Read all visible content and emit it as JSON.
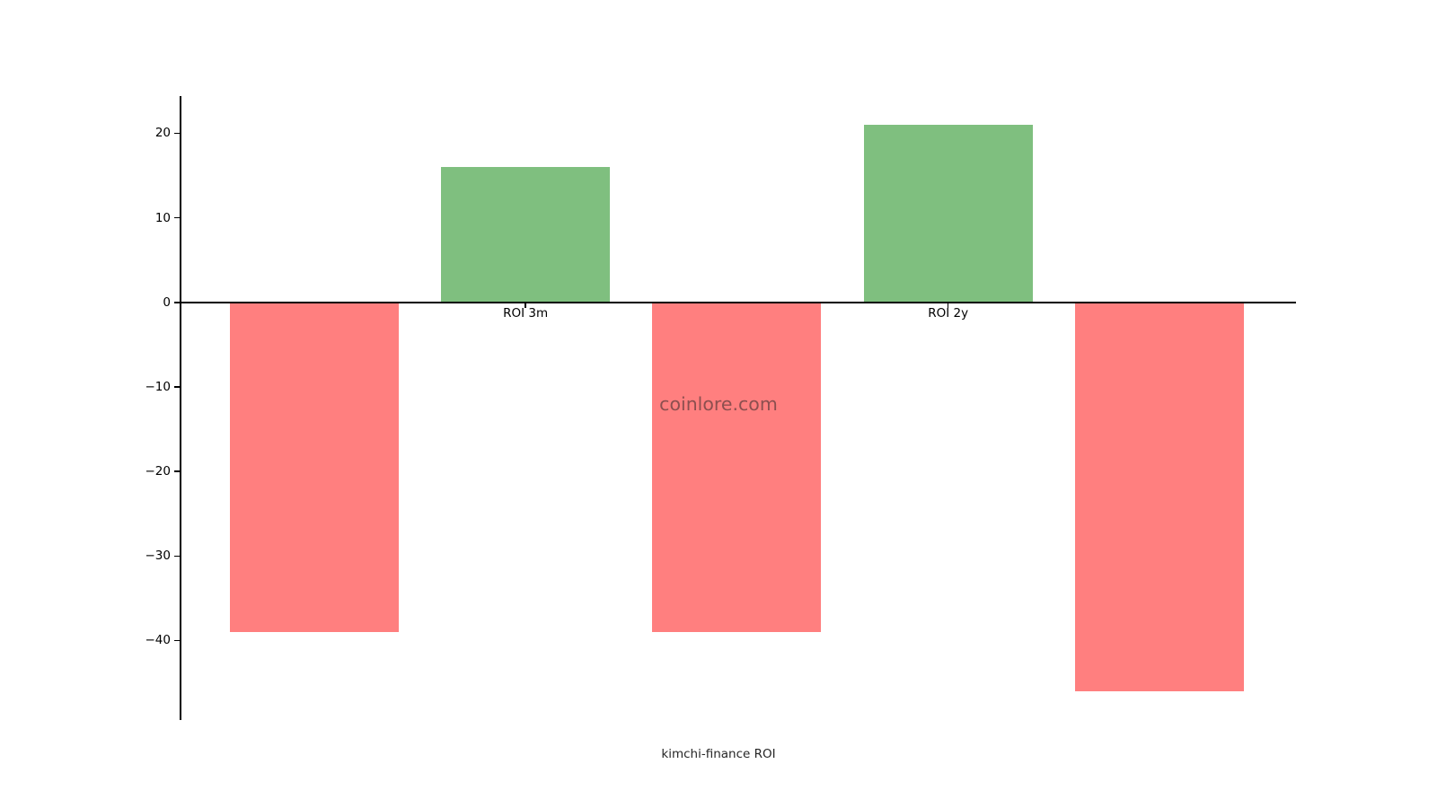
{
  "chart_data": {
    "type": "bar",
    "title": "kimchi-finance ROI",
    "watermark": "coinlore.com",
    "categories": [
      "",
      "ROI 3m",
      "",
      "ROI 2y",
      ""
    ],
    "values": [
      -39,
      16,
      -39,
      21,
      -46
    ],
    "series": [
      {
        "name": "ROI %",
        "values": [
          -39,
          16,
          -39,
          21,
          -46
        ]
      }
    ],
    "positive_color": "#7fbf7f",
    "negative_color": "#ff7f7f",
    "axis_color": "#000000",
    "y_ticks": [
      20,
      10,
      0,
      -10,
      -20,
      -30,
      -40
    ],
    "y_tick_labels": [
      "20",
      "10",
      "0",
      "−10",
      "−20",
      "−30",
      "−40"
    ],
    "ylim": [
      -49.4,
      24.4
    ],
    "xlabel": "",
    "ylabel": "",
    "grid": false,
    "legend_position": "none"
  }
}
